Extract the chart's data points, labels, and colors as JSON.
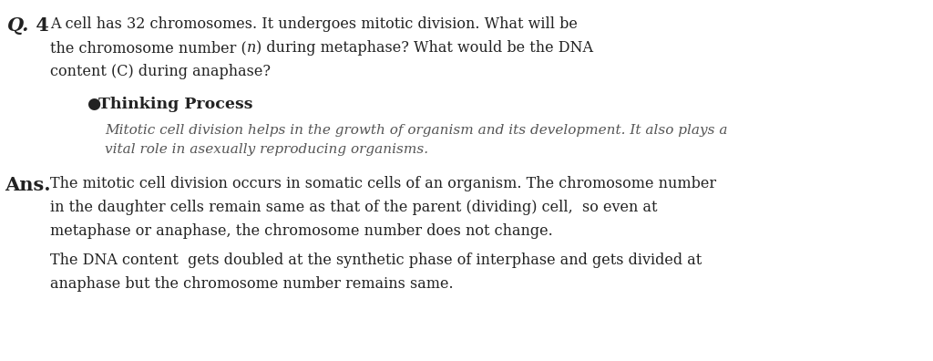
{
  "background_color": "#ffffff",
  "q_label": "Q.",
  "q_number": " 4",
  "question_line1": " A cell has 32 chromosomes. It undergoes mitotic division. What will be",
  "question_line2_a": "    the chromosome number (",
  "question_line2_n": "n",
  "question_line2_b": ") during metaphase? What would be the DNA",
  "question_line3": "    content (C) during anaphase?",
  "thinking_bullet": "●",
  "thinking_header_text": " Thinking Process",
  "thinking_italic_line1": "Mitotic cell division helps in the growth of organism and its development. It also plays a",
  "thinking_italic_line2": "vital role in asexually reproducing organisms.",
  "ans_label": "Ans.",
  "ans_line1": " The mitotic cell division occurs in somatic cells of an organism. The chromosome number",
  "ans_line2": "       in the daughter cells remain same as that of the parent (dividing) cell,  so even at",
  "ans_line3": "       metaphase or anaphase, the chromosome number does not change.",
  "ans_line4": "       The DNA content  gets doubled at the synthetic phase of interphase and gets divided at",
  "ans_line5": "       anaphase but the chromosome number remains same.",
  "text_color": "#222222",
  "italic_color": "#555555",
  "body_fontsize": 11.5,
  "q_fontsize": 15.0,
  "ans_fontsize": 15.0,
  "thinking_header_fontsize": 12.5,
  "italic_fontsize": 11.0
}
